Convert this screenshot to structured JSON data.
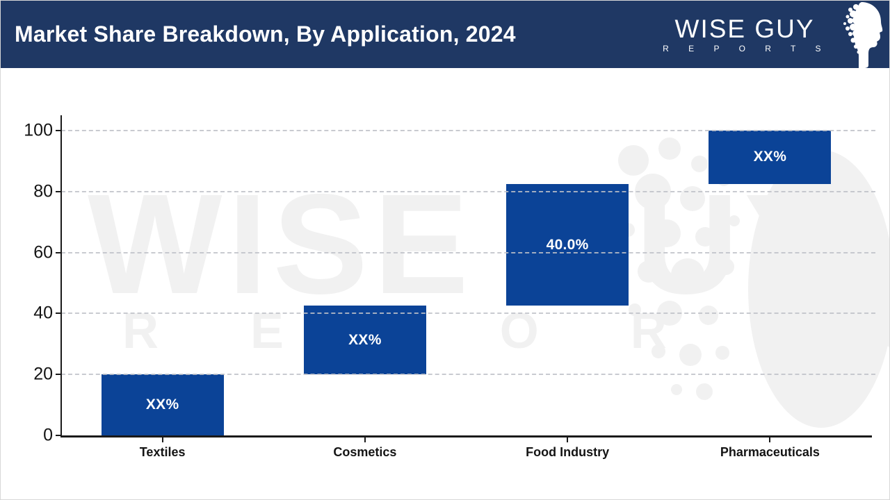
{
  "header": {
    "title": "Market Share Breakdown, By Application, 2024",
    "brand": {
      "line1": "WISE GUY",
      "line2": "R E P O R T S"
    },
    "background": "#1f3864"
  },
  "watermark": {
    "line1": "WISE GUY",
    "line2": "R E P O R T S"
  },
  "chart_data": {
    "type": "bar",
    "subtype": "waterfall",
    "title": "Market Share Breakdown, By Application, 2024",
    "categories": [
      "Textiles",
      "Cosmetics",
      "Food Industry",
      "Pharmaceuticals"
    ],
    "segments": [
      {
        "category": "Textiles",
        "start": 0,
        "end": 20,
        "label": "XX%"
      },
      {
        "category": "Cosmetics",
        "start": 20,
        "end": 42.5,
        "label": "XX%"
      },
      {
        "category": "Food Industry",
        "start": 42.5,
        "end": 82.5,
        "label": "40.0%"
      },
      {
        "category": "Pharmaceuticals",
        "start": 82.5,
        "end": 100,
        "label": "XX%"
      }
    ],
    "yticks": [
      0,
      20,
      40,
      60,
      80,
      100
    ],
    "ylim": [
      0,
      105
    ],
    "xlabel": "",
    "ylabel": "",
    "grid": "horizontal-dashed",
    "legend": "none",
    "bar_color": "#0b4397",
    "bar_label_color": "#ffffff",
    "axis_color": "#1a1a1a"
  }
}
